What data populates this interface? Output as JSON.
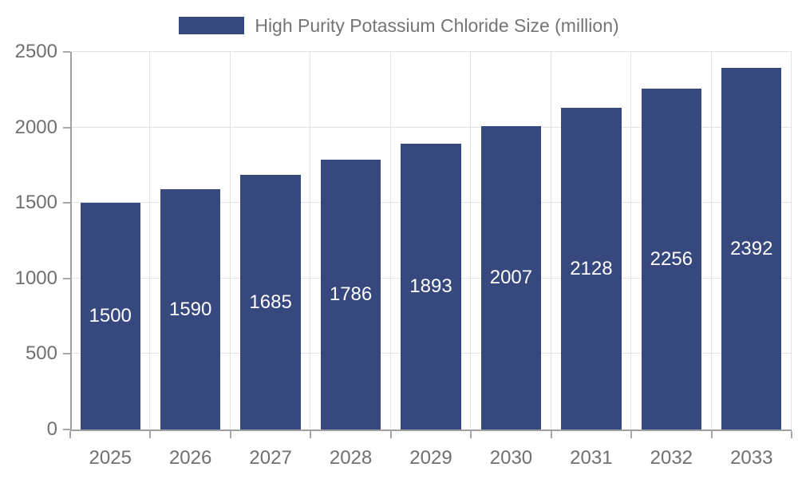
{
  "legend": {
    "label": "High Purity Potassium Chloride Size (million)"
  },
  "colors": {
    "bar": "#37487E",
    "grid": "#E3E3E3",
    "axis": "#A0A0A0",
    "tick": "#A8A8A8",
    "tick_label": "#707070",
    "legend_text": "#757575",
    "value_label": "#FFFFFF",
    "background": "#FFFFFF"
  },
  "chart_data": {
    "type": "bar",
    "title": "High Purity Potassium Chloride Size (million)",
    "categories": [
      "2025",
      "2026",
      "2027",
      "2028",
      "2029",
      "2030",
      "2031",
      "2032",
      "2033"
    ],
    "values": [
      1500,
      1590,
      1685,
      1786,
      1893,
      2007,
      2128,
      2256,
      2392
    ],
    "xlabel": "",
    "ylabel": "",
    "ylim": [
      0,
      2500
    ],
    "yticks": [
      0,
      500,
      1000,
      1500,
      2000,
      2500
    ],
    "grid": true,
    "legend_position": "top",
    "bar_label_position": "inside-center",
    "bar_width_fraction": 0.75
  }
}
